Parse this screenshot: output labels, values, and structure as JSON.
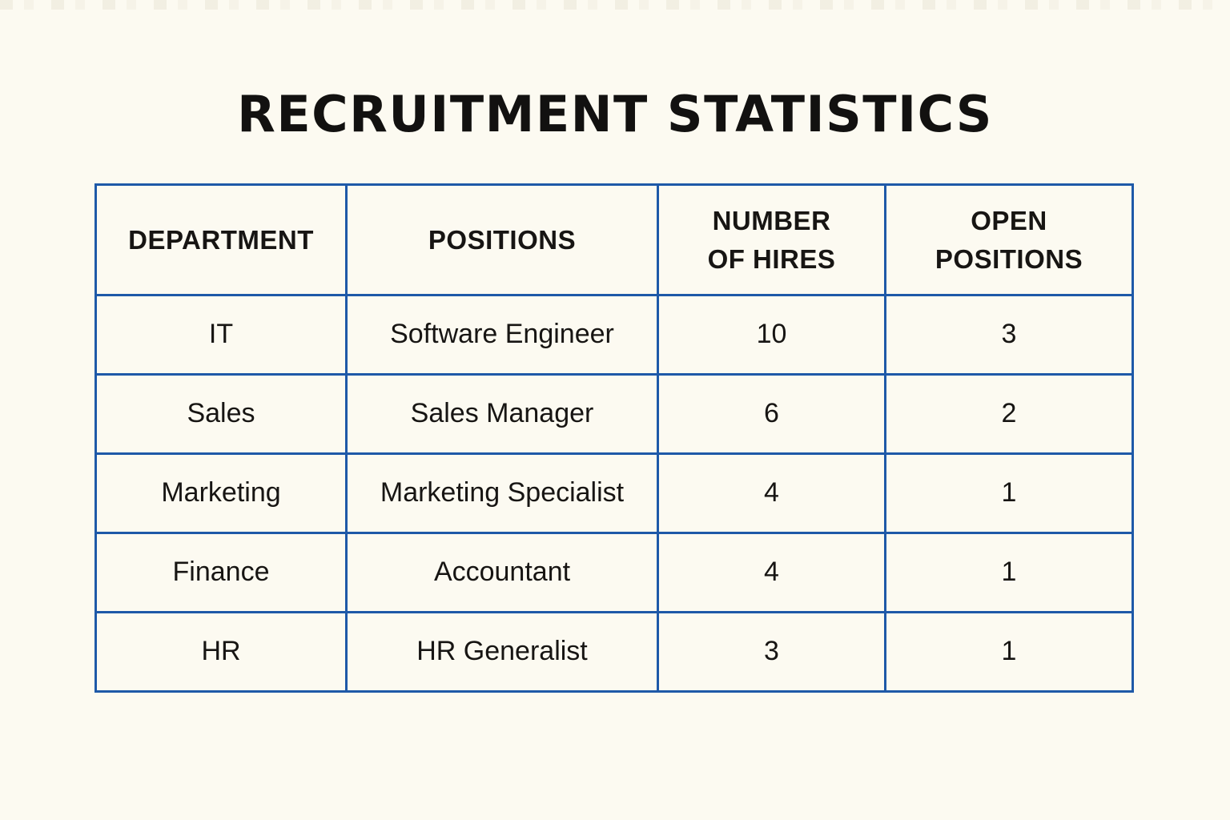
{
  "colors": {
    "background": "#FCFAF1",
    "cell": "#FCFAF1",
    "border": "#1E59A8",
    "text": "#171513"
  },
  "title": "RECRUITMENT STATISTICS",
  "table": {
    "headers": [
      {
        "lines": [
          "DEPARTMENT",
          ""
        ]
      },
      {
        "lines": [
          "POSITIONS",
          ""
        ]
      },
      {
        "lines": [
          "NUMBER",
          "OF HIRES"
        ]
      },
      {
        "lines": [
          "OPEN",
          "POSITIONS"
        ]
      }
    ],
    "rows": [
      {
        "department": "IT",
        "position": "Software Engineer",
        "hires": "10",
        "open": "3"
      },
      {
        "department": "Sales",
        "position": "Sales Manager",
        "hires": "6",
        "open": "2"
      },
      {
        "department": "Marketing",
        "position": "Marketing Specialist",
        "hires": "4",
        "open": "1"
      },
      {
        "department": "Finance",
        "position": "Accountant",
        "hires": "4",
        "open": "1"
      },
      {
        "department": "HR",
        "position": "HR Generalist",
        "hires": "3",
        "open": "1"
      }
    ]
  }
}
